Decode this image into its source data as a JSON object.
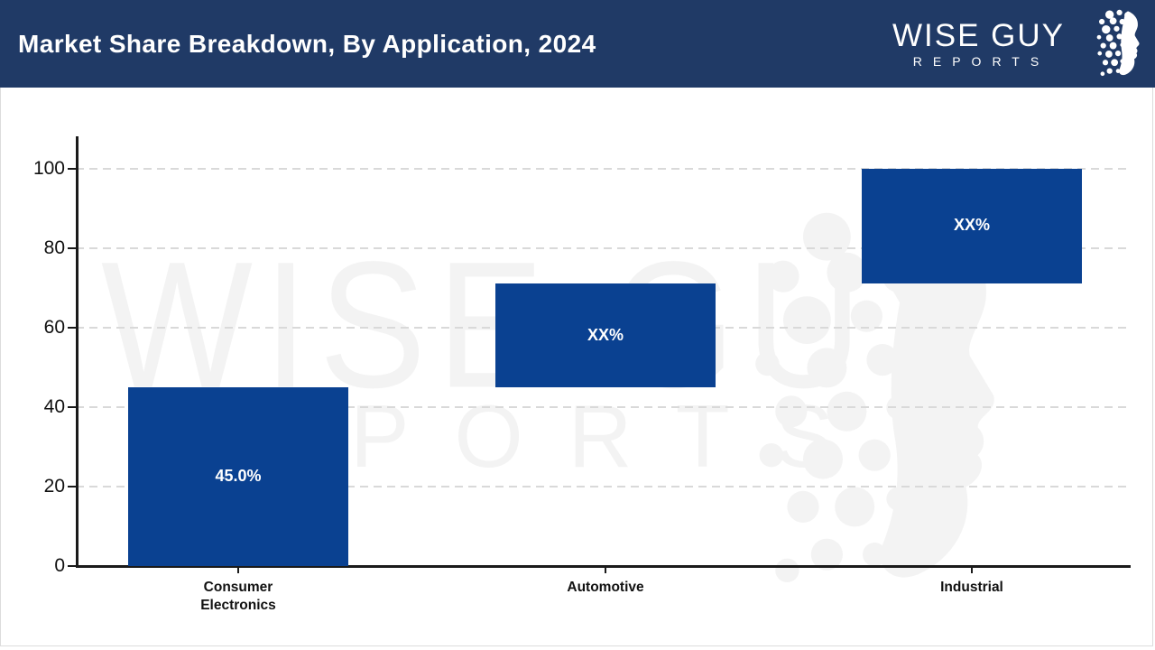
{
  "header": {
    "title": "Market Share Breakdown, By Application, 2024",
    "logo": {
      "name": "WISE GUY",
      "sub": "REPORTS"
    }
  },
  "watermark": {
    "name": "WISE GUY",
    "sub": "REPORTS"
  },
  "chart_data": {
    "type": "bar",
    "subtype": "floating-segment-bars-cumulative-share",
    "title": "Market Share Breakdown, By Application, 2024",
    "categories": [
      "Consumer Electronics",
      "Automotive",
      "Industrial"
    ],
    "series": [
      {
        "category": "Consumer Electronics",
        "from": 0,
        "to": 45,
        "value": 45.0,
        "label": "45.0%"
      },
      {
        "category": "Automotive",
        "from": 45,
        "to": 71,
        "value": null,
        "label": "XX%"
      },
      {
        "category": "Industrial",
        "from": 71,
        "to": 100,
        "value": null,
        "label": "XX%"
      }
    ],
    "xlabel": "",
    "ylabel": "",
    "yticks": [
      0,
      20,
      40,
      60,
      80,
      100
    ],
    "ylim": [
      0,
      108
    ],
    "grid": "horizontal-dashed",
    "legend_position": "none",
    "bar_color": "#0a4191",
    "bar_label_color": "#ffffff"
  },
  "colors": {
    "header_bg": "#203a66",
    "bar": "#0a4191",
    "grid": "#d9d9d9",
    "axis": "#1a1a1a",
    "watermark": "#f3f3f3",
    "frame_border": "#dcdcdc"
  }
}
